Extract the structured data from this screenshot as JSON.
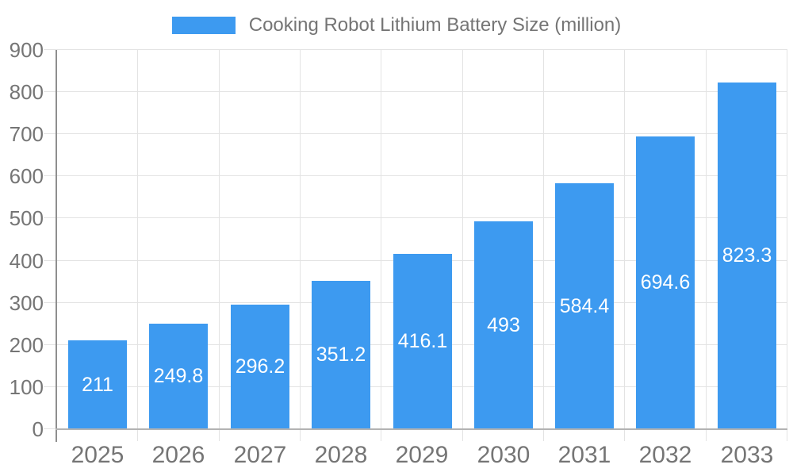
{
  "colors": {
    "bar": "#3D9AF0",
    "label_text": "#757575",
    "value_text": "#FFFFFF",
    "grid": "#E3E3E3",
    "y_axis_line": "#8F8F8F",
    "x_axis_line": "#B3B3B3",
    "background": "#FFFFFF"
  },
  "chart_data": {
    "type": "bar",
    "title": "Cooking Robot Lithium Battery Size (million)",
    "categories": [
      "2025",
      "2026",
      "2027",
      "2028",
      "2029",
      "2030",
      "2031",
      "2032",
      "2033"
    ],
    "values": [
      211,
      249.8,
      296.2,
      351.2,
      416.1,
      493,
      584.4,
      694.6,
      823.3
    ],
    "value_labels": [
      "211",
      "249.8",
      "296.2",
      "351.2",
      "416.1",
      "493",
      "584.4",
      "694.6",
      "823.3"
    ],
    "xlabel": "",
    "ylabel": "",
    "ylim": [
      0,
      900
    ],
    "ytick_step": 100,
    "ytick_labels": [
      "0",
      "100",
      "200",
      "300",
      "400",
      "500",
      "600",
      "700",
      "800",
      "900"
    ],
    "grid": "horizontal+vertical",
    "legend_position": "top-center",
    "value_label_position": "inside-center"
  }
}
